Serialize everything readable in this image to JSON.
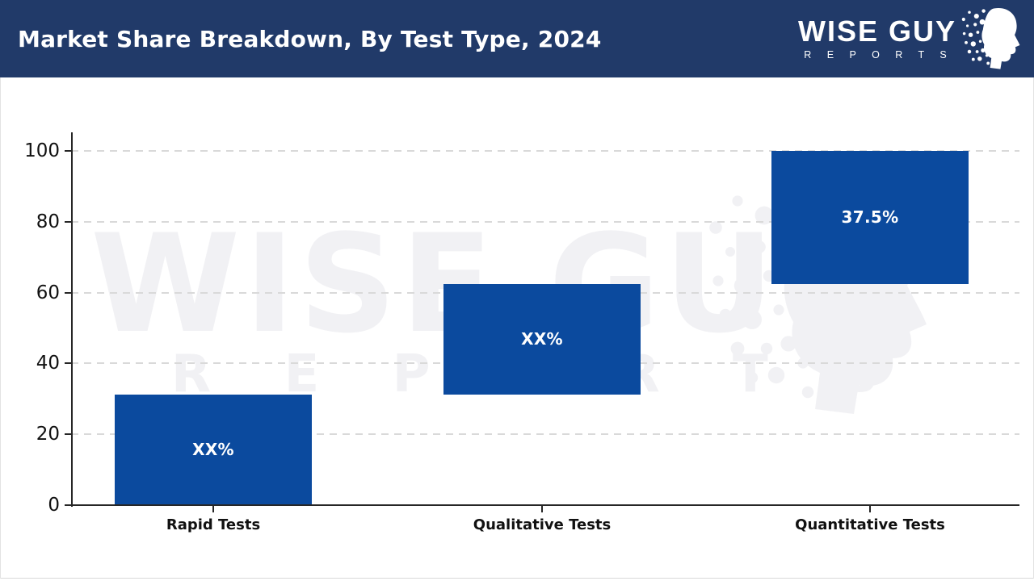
{
  "header": {
    "bg": "#213a69",
    "title": "Market Share Breakdown, By Test Type, 2024",
    "logo": {
      "wordmark": "WISE GUY",
      "subtext": "R E P O R T S",
      "icon": "dot-head-profile-icon"
    }
  },
  "watermark": {
    "wordmark": "WISE GUY",
    "subtext": "R E P O R T S",
    "color": "#f1f1f4"
  },
  "chart_data": {
    "type": "bar",
    "subtype": "floating-stacked-segments",
    "title": "Market Share Breakdown, By Test Type, 2024",
    "categories": [
      "Rapid Tests",
      "Qualitative Tests",
      "Quantitative Tests"
    ],
    "segments": [
      {
        "category": "Rapid Tests",
        "from": 0,
        "to": 31.25,
        "height": 31.25,
        "label": "XX%"
      },
      {
        "category": "Qualitative Tests",
        "from": 31.25,
        "to": 62.5,
        "height": 31.25,
        "label": "XX%"
      },
      {
        "category": "Quantitative Tests",
        "from": 62.5,
        "to": 100,
        "height": 37.5,
        "label": "37.5%"
      }
    ],
    "xlabel": "",
    "ylabel": "",
    "ylim": [
      0,
      100
    ],
    "yticks": [
      0,
      20,
      40,
      60,
      80,
      100
    ],
    "grid": "dashed-horizontal",
    "legend": "none",
    "bar_color": "#0b4a9e",
    "label_color": "#ffffff",
    "axis_color": "#262626",
    "grid_color": "#d9d9d9"
  }
}
